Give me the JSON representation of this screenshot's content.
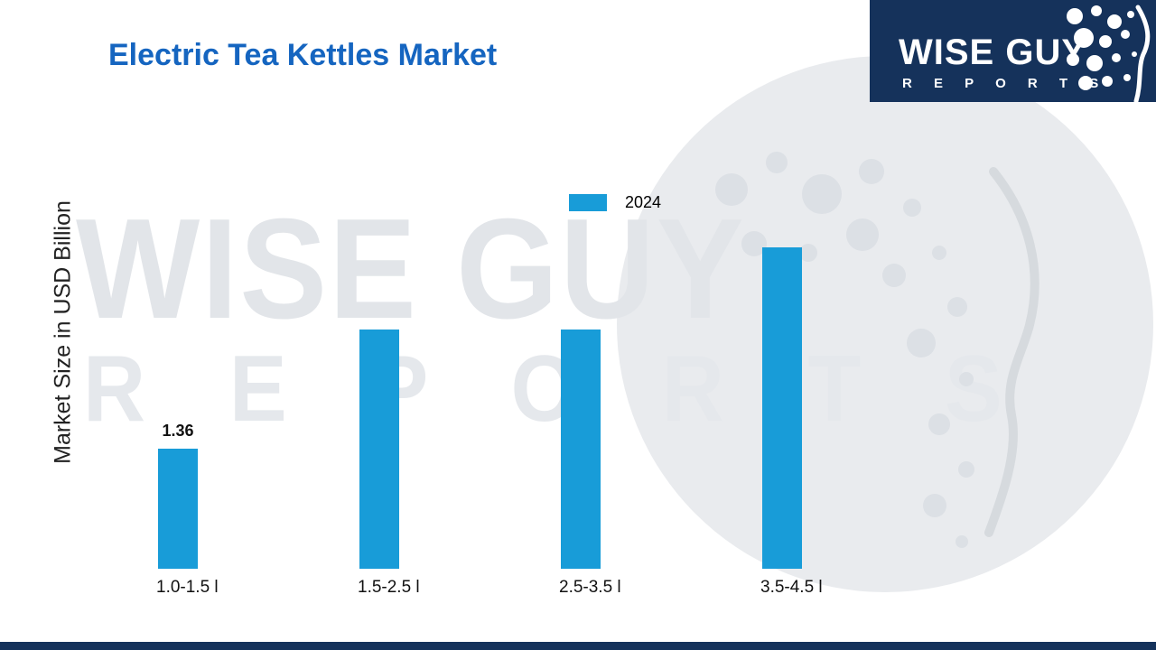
{
  "title": "Electric Tea Kettles Market",
  "y_axis_label": "Market Size in USD Billion",
  "legend": {
    "year": "2024"
  },
  "logo": {
    "line1": "WISE GUY",
    "line2": "R E P O R T S"
  },
  "watermark": {
    "line1": "WISE GUY",
    "line2": "R E P O R T S"
  },
  "colors": {
    "bar": "#189cd8",
    "title": "#1565c0",
    "navy": "#15325b",
    "watermark_gray": "#e2e5e9"
  },
  "chart_data": {
    "type": "bar",
    "title": "Electric Tea Kettles Market",
    "categories": [
      "1.0-1.5 l",
      "1.5-2.5 l",
      "2.5-3.5 l",
      "3.5-4.5 l"
    ],
    "series": [
      {
        "name": "2024",
        "values": [
          1.36,
          2.71,
          2.71,
          3.64
        ]
      }
    ],
    "value_labels": [
      "1.36",
      null,
      null,
      null
    ],
    "xlabel": "",
    "ylabel": "Market Size in USD Billion",
    "ylim": [
      0,
      4
    ],
    "grid": false,
    "legend_position": "top-center"
  }
}
